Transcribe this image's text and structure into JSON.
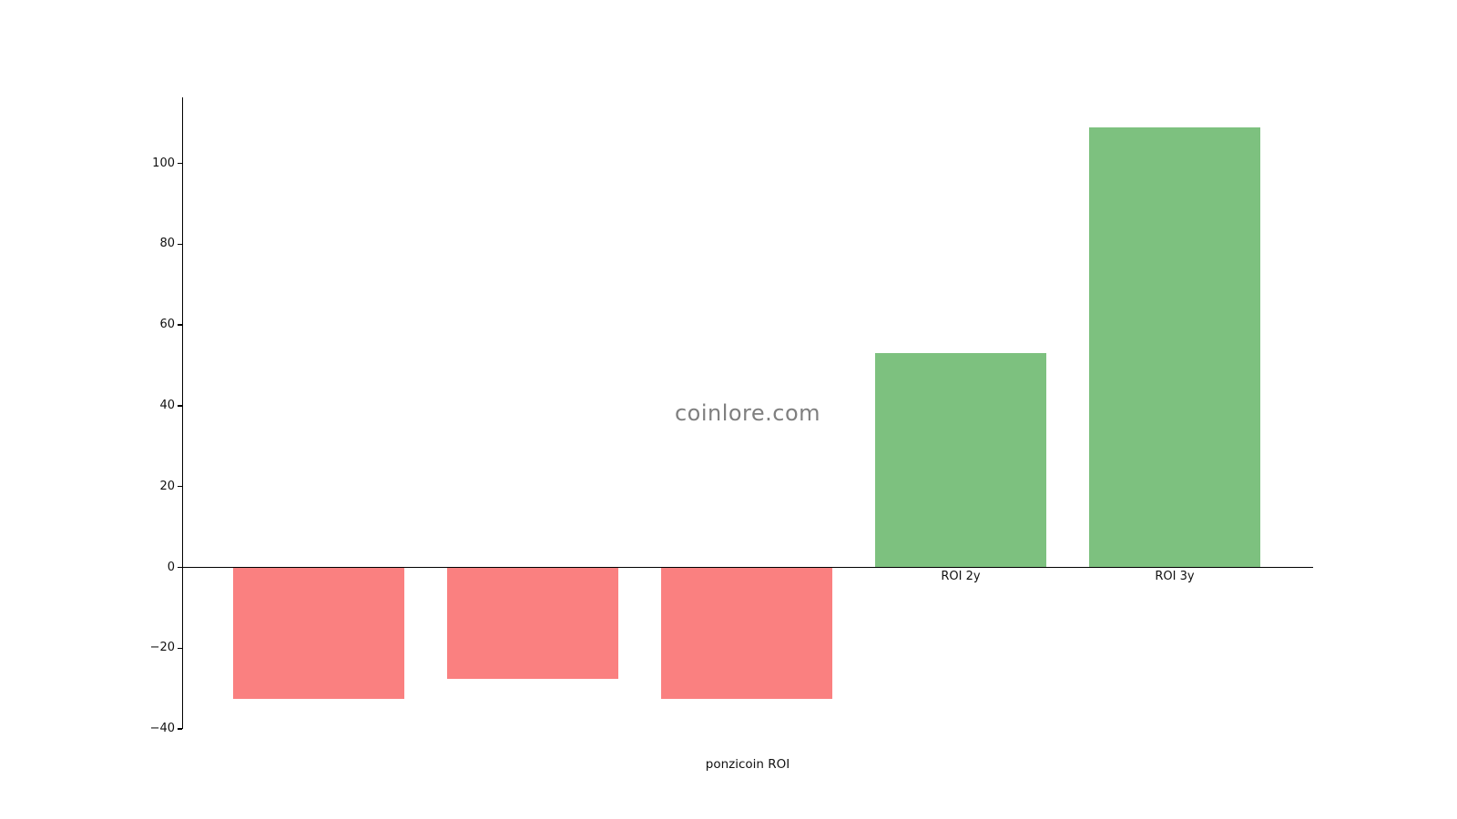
{
  "chart_data": {
    "type": "bar",
    "title": "",
    "xlabel": "ponzicoin ROI",
    "ylabel": "",
    "categories": [
      "",
      "",
      "",
      "ROI 2y",
      "ROI 3y"
    ],
    "values": [
      -32.5,
      -27.5,
      -32.5,
      53,
      109
    ],
    "ylim": [
      -40,
      116
    ],
    "grid": false,
    "legend": "none",
    "yticks": [
      {
        "label": "−40",
        "value": -40
      },
      {
        "label": "−20",
        "value": -20
      },
      {
        "label": "0",
        "value": 0
      },
      {
        "label": "20",
        "value": 20
      },
      {
        "label": "40",
        "value": 40
      },
      {
        "label": "60",
        "value": 60
      },
      {
        "label": "80",
        "value": 80
      },
      {
        "label": "100",
        "value": 100
      }
    ],
    "colors": {
      "negative_bar": "#fa8080",
      "positive_bar": "#7dc17f",
      "axis": "#000000",
      "tick_text": "#111111"
    }
  },
  "watermark": {
    "text": "coinlore.com",
    "color": "#7f7f7f"
  }
}
